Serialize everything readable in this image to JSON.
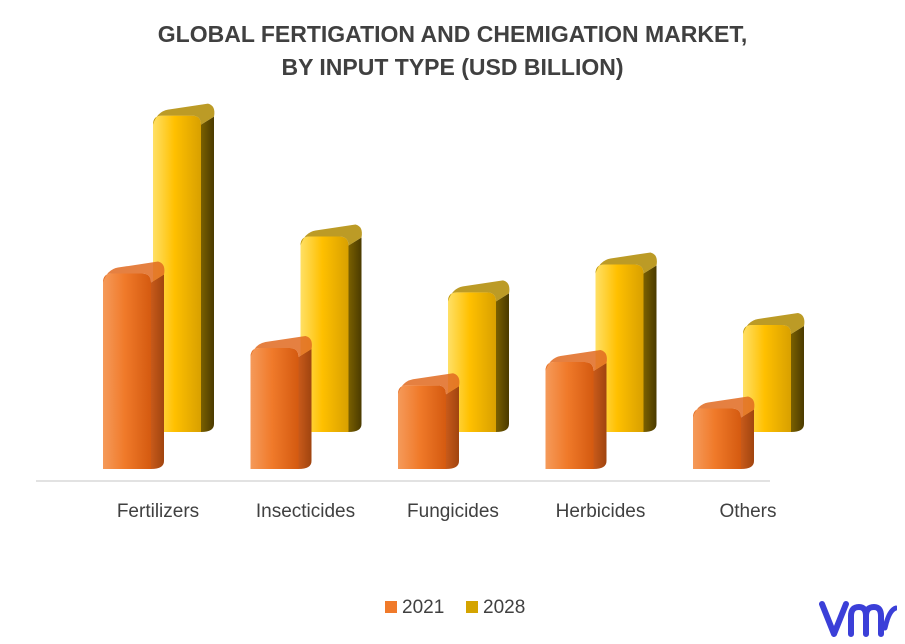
{
  "chart_data": {
    "type": "bar",
    "title_lines": [
      "GLOBAL FERTIGATION AND CHEMIGATION MARKET,",
      "BY INPUT TYPE (USD BILLION)"
    ],
    "categories": [
      "Fertilizers",
      "Insecticides",
      "Fungicides",
      "Herbicides",
      "Others"
    ],
    "series": [
      {
        "name": "2021",
        "values": [
          4.2,
          2.6,
          1.8,
          2.3,
          1.3
        ],
        "color": "#f07a2a"
      },
      {
        "name": "2028",
        "values": [
          6.8,
          4.2,
          3.0,
          3.6,
          2.3
        ],
        "color": "#ffc000"
      }
    ],
    "xlabel": "",
    "ylabel": "",
    "ylim": [
      0,
      7.5
    ],
    "grid": false,
    "legend_position": "bottom",
    "style": "3d-cylinder"
  },
  "branding": {
    "logo_icon": "vmr-logo-icon",
    "logo_color": "#3b3fd8"
  }
}
